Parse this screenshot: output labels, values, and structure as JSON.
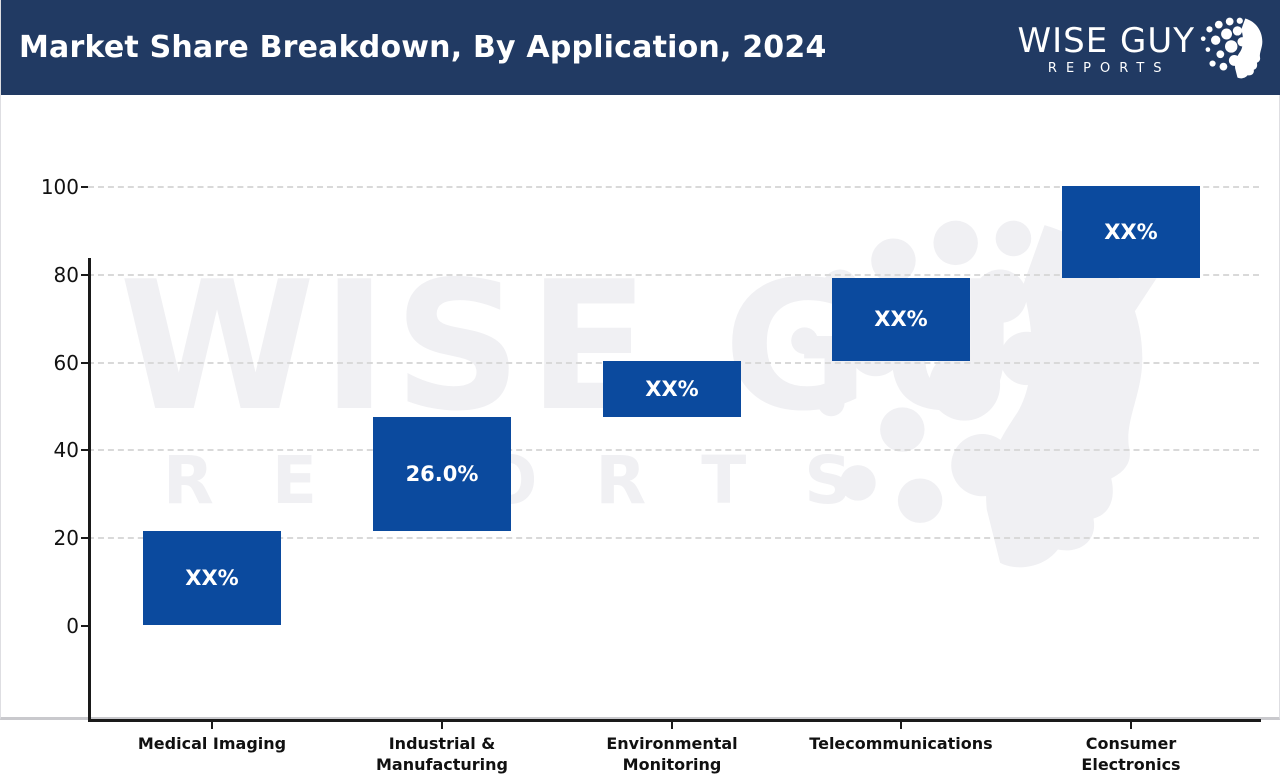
{
  "header": {
    "title": "Market Share Breakdown, By Application, 2024",
    "bg_color": "#213a63",
    "logo": {
      "line1": "WISE GUY",
      "line2": "REPORTS"
    }
  },
  "watermark": {
    "line1": "WISE GUY",
    "line2": "REPORTS"
  },
  "chart_data": {
    "type": "bar",
    "variant": "waterfall",
    "title": "Market Share Breakdown, By Application, 2024",
    "categories": [
      "Medical Imaging",
      "Industrial & Manufacturing",
      "Environmental Monitoring",
      "Telecommunications",
      "Consumer Electronics"
    ],
    "category_lines": [
      [
        "Medical Imaging"
      ],
      [
        "Industrial &",
        "Manufacturing"
      ],
      [
        "Environmental",
        "Monitoring"
      ],
      [
        "Telecommunications"
      ],
      [
        "Consumer",
        "Electronics"
      ]
    ],
    "segments": [
      {
        "category": "Medical Imaging",
        "start": 0,
        "end": 21.4,
        "label": "XX%"
      },
      {
        "category": "Industrial & Manufacturing",
        "start": 21.4,
        "end": 47.4,
        "label": "26.0%"
      },
      {
        "category": "Environmental Monitoring",
        "start": 47.4,
        "end": 60.2,
        "label": "XX%"
      },
      {
        "category": "Telecommunications",
        "start": 60.2,
        "end": 79.0,
        "label": "XX%"
      },
      {
        "category": "Consumer Electronics",
        "start": 79.0,
        "end": 100.0,
        "label": "XX%"
      }
    ],
    "yticks": [
      0,
      20,
      40,
      60,
      80,
      100
    ],
    "ylim": [
      0,
      105
    ],
    "xlabel": "",
    "ylabel": "",
    "grid": "horizontal-dashed",
    "legend": "none",
    "bar_color": "#0b4a9e",
    "bar_label_color": "#ffffff",
    "axis_color": "#1a1a1a",
    "gridline_color": "#d9d9d9",
    "watermark_color": "#f0f0f3"
  }
}
